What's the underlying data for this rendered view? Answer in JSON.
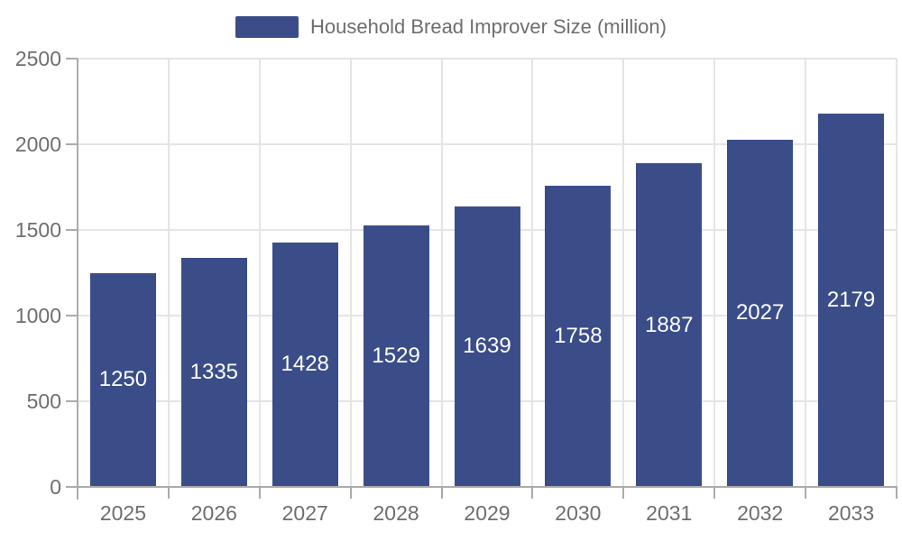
{
  "legend": {
    "label": "Household Bread Improver Size (million)"
  },
  "colors": {
    "bar": "#3A4D89",
    "grid": "#e4e4e4",
    "axis": "#ababab",
    "text": "#6e6e6e",
    "bar_label": "#ffffff",
    "background": "#ffffff"
  },
  "chart_data": {
    "type": "bar",
    "categories": [
      "2025",
      "2026",
      "2027",
      "2028",
      "2029",
      "2030",
      "2031",
      "2032",
      "2033"
    ],
    "values": [
      1250,
      1335,
      1428,
      1529,
      1639,
      1758,
      1887,
      2027,
      2179
    ],
    "series": [
      {
        "name": "Household Bread Improver Size (million)",
        "values": [
          1250,
          1335,
          1428,
          1529,
          1639,
          1758,
          1887,
          2027,
          2179
        ]
      }
    ],
    "title": "",
    "xlabel": "",
    "ylabel": "",
    "ylim": [
      0,
      2500
    ],
    "yticks": [
      0,
      500,
      1000,
      1500,
      2000,
      2500
    ],
    "grid": true,
    "legend_position": "top-center",
    "data_labels": "inside-center"
  }
}
